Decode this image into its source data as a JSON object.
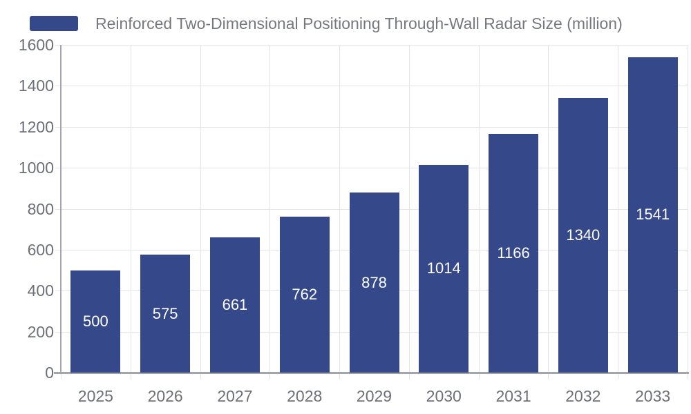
{
  "legend": {
    "label": "Reinforced Two-Dimensional Positioning Through-Wall Radar Size (million)"
  },
  "chart_data": {
    "type": "bar",
    "title": "Reinforced Two-Dimensional Positioning Through-Wall Radar Size (million)",
    "series_name": "Reinforced Two-Dimensional Positioning Through-Wall Radar Size (million)",
    "categories": [
      "2025",
      "2026",
      "2027",
      "2028",
      "2029",
      "2030",
      "2031",
      "2032",
      "2033"
    ],
    "values": [
      500,
      575,
      661,
      762,
      878,
      1014,
      1166,
      1340,
      1541
    ],
    "xlabel": "",
    "ylabel": "",
    "ylim": [
      0,
      1600
    ],
    "yticks": [
      0,
      200,
      400,
      600,
      800,
      1000,
      1200,
      1400,
      1600
    ],
    "grid": true,
    "legend_position": "top-left",
    "value_labels": "inside-center",
    "colors": {
      "bar": "#35488A",
      "value_label": "#FFFFFF",
      "axis_label": "#6E7079",
      "grid_line": "#E3E4E8",
      "axis_line": "#A2A5AB",
      "legend_text": "#75787D"
    }
  }
}
